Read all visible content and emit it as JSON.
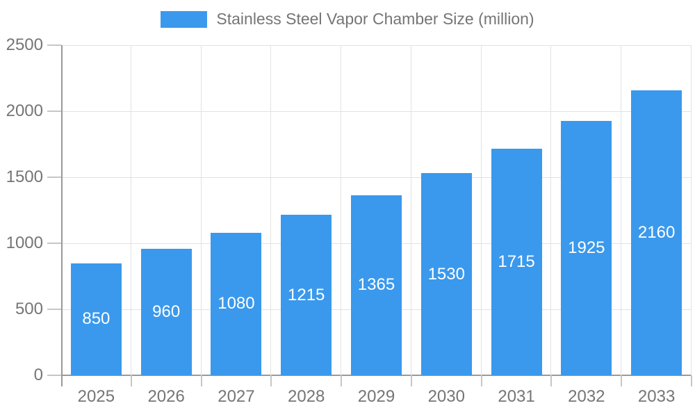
{
  "legend": {
    "label": "Stainless Steel Vapor Chamber Size (million)"
  },
  "chart_data": {
    "type": "bar",
    "title": "Stainless Steel Vapor Chamber Size (million)",
    "categories": [
      "2025",
      "2026",
      "2027",
      "2028",
      "2029",
      "2030",
      "2031",
      "2032",
      "2033"
    ],
    "values": [
      850,
      960,
      1080,
      1215,
      1365,
      1530,
      1715,
      1925,
      2160
    ],
    "bar_labels": [
      "850",
      "960",
      "1080",
      "1215",
      "1365",
      "1530",
      "1715",
      "1925",
      "2160"
    ],
    "xlabel": "",
    "ylabel": "",
    "ylim": [
      0,
      2500
    ],
    "yticks": [
      0,
      500,
      1000,
      1500,
      2000,
      2500
    ],
    "grid": true,
    "legend_position": "top-center",
    "colors": {
      "bar": "#3a99ec",
      "bar_label": "#ffffff",
      "axis_text": "#757575",
      "grid_line": "#e2e2e2",
      "axis_line": "#999999",
      "tick": "#c6c6c6"
    }
  }
}
